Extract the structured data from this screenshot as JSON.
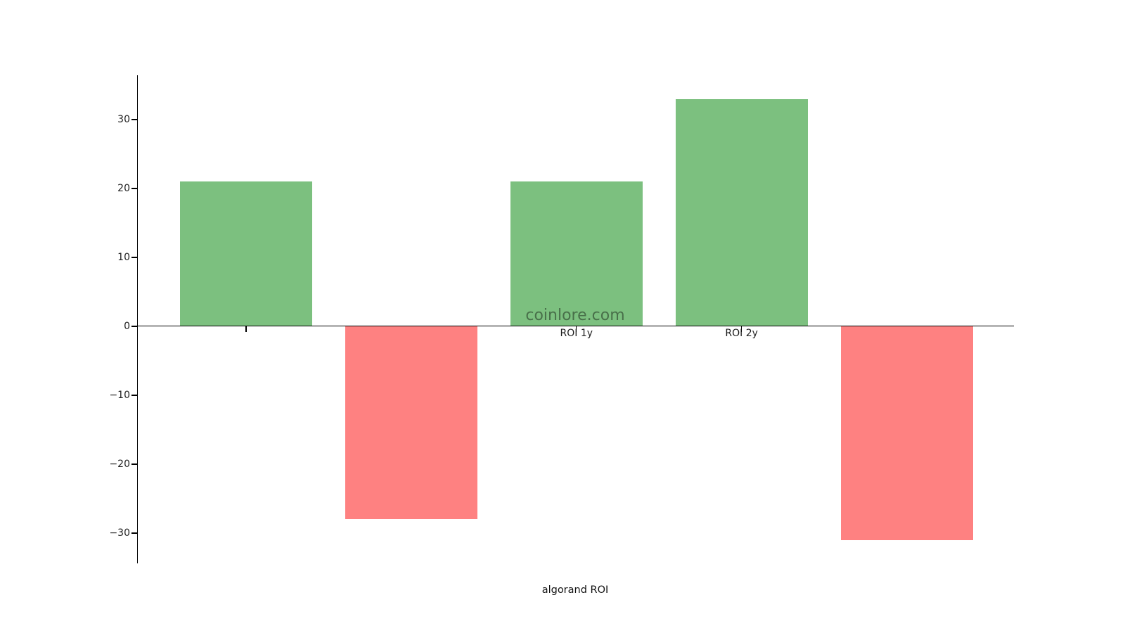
{
  "watermark": {
    "text": "coinlore.com"
  },
  "chart_data": {
    "type": "bar",
    "title": "",
    "xlabel": "algorand ROI",
    "ylabel": "",
    "categories": [
      "",
      "",
      "ROI 1y",
      "ROI 2y",
      ""
    ],
    "values": [
      21,
      -28,
      21,
      33,
      -31
    ],
    "series": [
      {
        "name": "algorand ROI %",
        "values": [
          21,
          -28,
          21,
          33,
          -31
        ]
      }
    ],
    "ylim": [
      -34.2,
      36.2
    ],
    "yticks": [
      30,
      20,
      10,
      0,
      -10,
      -20,
      -30
    ],
    "ytick_labels": [
      "30",
      "20",
      "10",
      "0",
      "−10",
      "−20",
      "−30"
    ],
    "grid": false,
    "legend": null,
    "layout_hint": "positive bars green above zero line, negative bars red below zero line; only bars 3 and 4 have x tick labels",
    "colors": {
      "positive_bar": "#7cc07f",
      "negative_bar": "#fe8181",
      "axis": "#000000",
      "tick_label": "#1f1f1f",
      "watermark": "rgba(0,0,0,0.42)"
    }
  }
}
